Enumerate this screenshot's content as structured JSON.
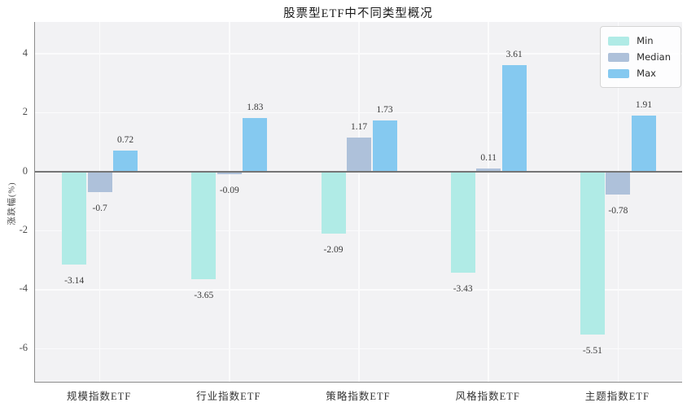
{
  "chart_data": {
    "type": "bar",
    "title": "股票型ETF中不同类型概况",
    "xlabel": "",
    "ylabel": "涨跌幅(%)",
    "categories": [
      "规模指数ETF",
      "行业指数ETF",
      "策略指数ETF",
      "风格指数ETF",
      "主题指数ETF"
    ],
    "series": [
      {
        "name": "Min",
        "color": "#b0ebe6",
        "values": [
          -3.14,
          -3.65,
          -2.09,
          -3.43,
          -5.51
        ]
      },
      {
        "name": "Median",
        "color": "#aec1da",
        "values": [
          -0.7,
          -0.09,
          1.17,
          0.11,
          -0.78
        ]
      },
      {
        "name": "Max",
        "color": "#85c9f0",
        "values": [
          0.72,
          1.83,
          1.73,
          3.61,
          1.91
        ]
      }
    ],
    "yticks": [
      4,
      2,
      0,
      -2,
      -4,
      -6
    ],
    "ylim": [
      -7.15,
      5.08
    ],
    "grid": true,
    "legend_position": "top-right",
    "colors": {
      "plot_background": "#f2f2f4",
      "grid": "#fbfbfc",
      "zero_line": "#757575",
      "spine": "#8c8c8c",
      "label_text": "#3a3a3a"
    }
  }
}
